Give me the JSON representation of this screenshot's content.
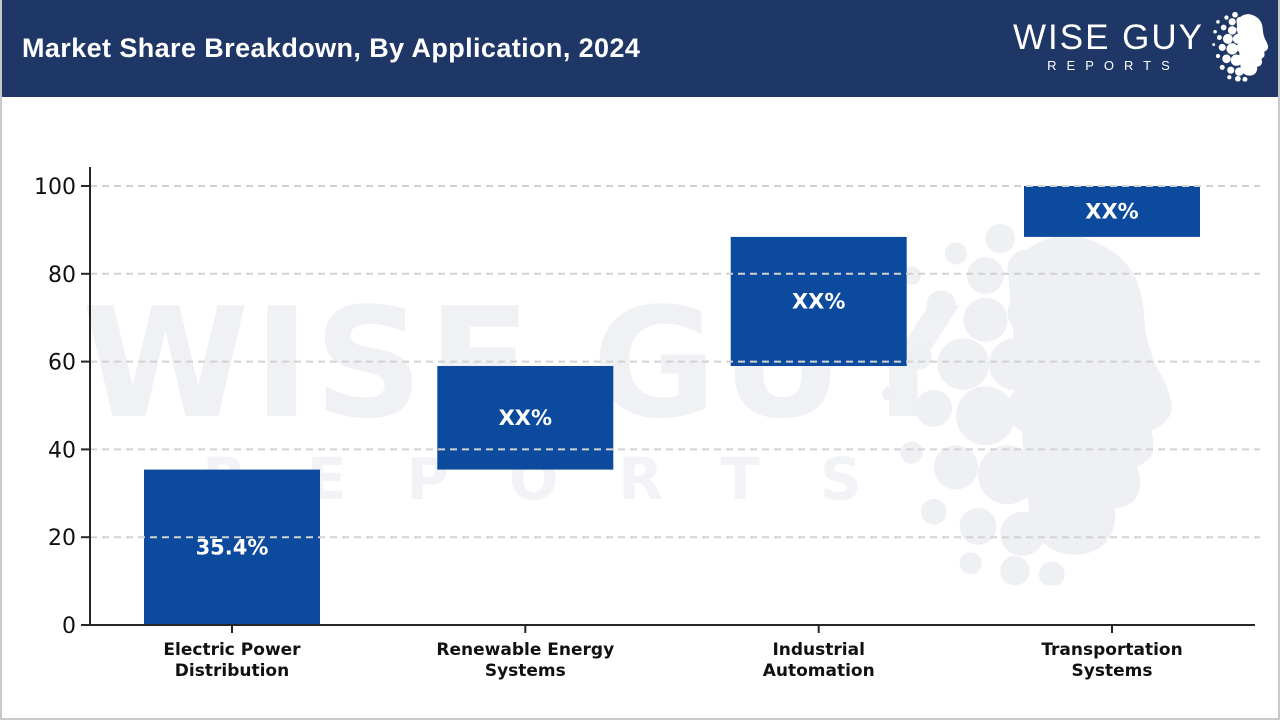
{
  "header": {
    "title": "Market Share Breakdown, By Application, 2024",
    "bg_color": "#1f3766",
    "logo": {
      "line1": "WISE GUY",
      "line2": "REPORTS"
    }
  },
  "watermark": {
    "line1": "WISE GUY",
    "line2": "REPORTS"
  },
  "chart_data": {
    "type": "bar",
    "subtype": "waterfall",
    "title": "Market Share Breakdown, By Application, 2024",
    "categories": [
      [
        "Electric Power",
        "Distribution"
      ],
      [
        "Renewable Energy",
        "Systems"
      ],
      [
        "Industrial",
        "Automation"
      ],
      [
        "Transportation",
        "Systems"
      ]
    ],
    "segments": [
      {
        "start": 0,
        "end": 35.4,
        "label": "35.4%"
      },
      {
        "start": 35.4,
        "end": 59,
        "label": "XX%"
      },
      {
        "start": 59,
        "end": 88.4,
        "label": "XX%"
      },
      {
        "start": 88.4,
        "end": 100,
        "label": "XX%"
      }
    ],
    "ylim": [
      0,
      100
    ],
    "yticks": [
      0,
      20,
      40,
      60,
      80,
      100
    ],
    "grid": "horizontal-dashed",
    "legend": "none",
    "bar_color": "#0c4a9e",
    "bar_label_color": "#ffffff",
    "axis_color": "#262626",
    "grid_color": "#d2d2d2",
    "tick_label_color": "#111111"
  }
}
